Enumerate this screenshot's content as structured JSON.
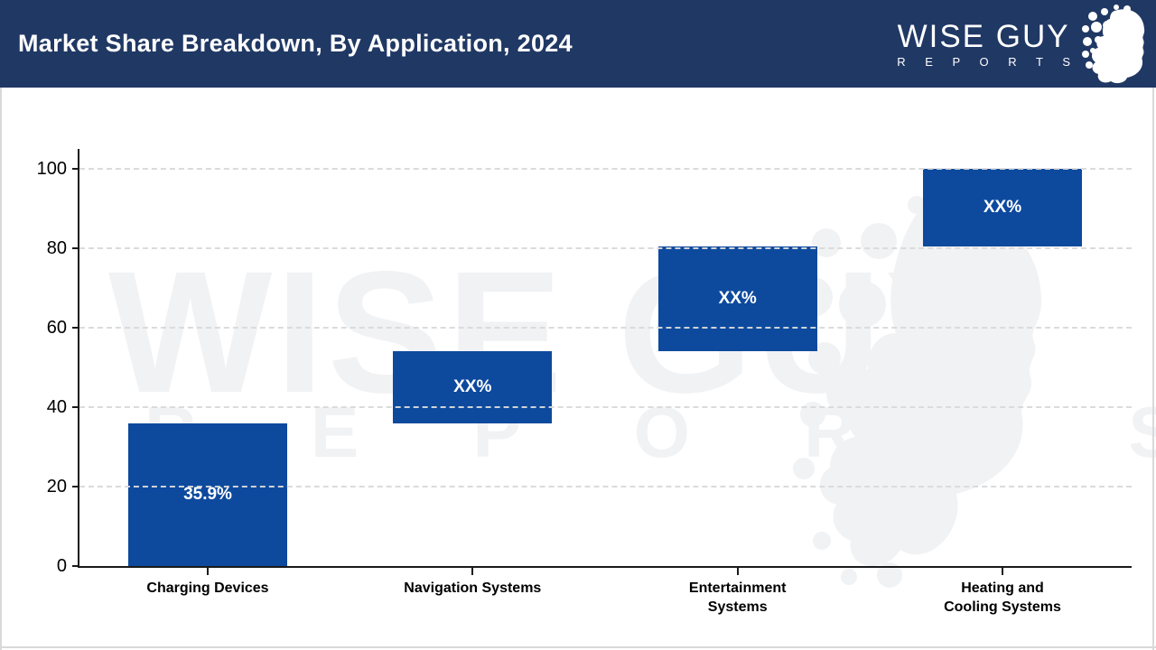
{
  "header": {
    "title": "Market Share Breakdown, By Application, 2024",
    "logo": {
      "brand_line1": "WISE GUY",
      "brand_line2": "R E P O R T S"
    }
  },
  "watermark": {
    "line1": "WISE GUY",
    "line2": "R E P O R T S"
  },
  "chart_data": {
    "type": "bar",
    "subtype": "waterfall",
    "title": "Market Share Breakdown, By Application, 2024",
    "categories": [
      "Charging Devices",
      "Navigation Systems",
      "Entertainment\nSystems",
      "Heating and\nCooling Systems"
    ],
    "segments": [
      {
        "category": "Charging Devices",
        "start": 0,
        "end": 35.9,
        "label": "35.9%"
      },
      {
        "category": "Navigation Systems",
        "start": 35.9,
        "end": 54.0,
        "label": "XX%"
      },
      {
        "category": "Entertainment Systems",
        "start": 54.0,
        "end": 80.5,
        "label": "XX%"
      },
      {
        "category": "Heating and Cooling Systems",
        "start": 80.5,
        "end": 100.0,
        "label": "XX%"
      }
    ],
    "xlabel": "",
    "ylabel": "",
    "ylim": [
      0,
      105
    ],
    "yticks": [
      0,
      20,
      40,
      60,
      80,
      100
    ],
    "grid": "horizontal-dashed",
    "legend": "none",
    "bar_color": "#0d4a9e",
    "bar_label_color": "#ffffff"
  },
  "colors": {
    "header_bg": "#203864",
    "bar": "#0d4a9e",
    "gridline": "#d9d9d9",
    "watermark": "#f1f2f4",
    "axis": "#1a1a1a",
    "border": "#d9d9d9"
  }
}
